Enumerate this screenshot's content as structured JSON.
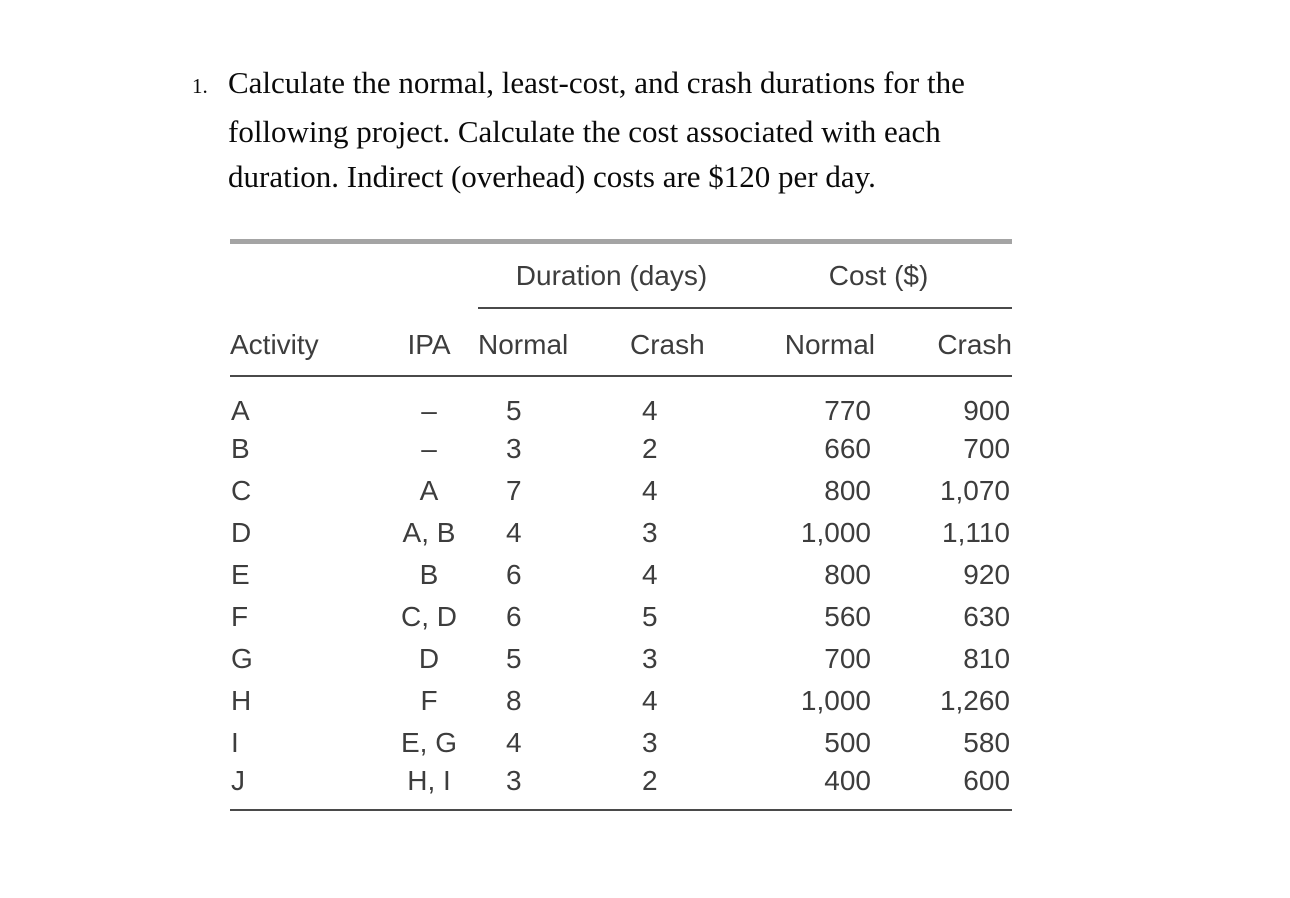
{
  "problem": {
    "number": "1.",
    "lines": [
      "Calculate the normal, least-cost, and crash durations for the",
      "following project. Calculate the cost associated with each",
      "duration. Indirect (overhead) costs are $120 per day."
    ]
  },
  "table": {
    "group_headers": {
      "duration": "Duration (days)",
      "cost": "Cost ($)"
    },
    "columns": [
      "Activity",
      "IPA",
      "Normal",
      "Crash",
      "Normal",
      "Crash"
    ],
    "column_keys": [
      "activity",
      "ipa",
      "duration-normal",
      "duration-crash",
      "cost-normal",
      "cost-crash"
    ],
    "rows": [
      [
        "A",
        "–",
        "5",
        "4",
        "770",
        "900"
      ],
      [
        "B",
        "–",
        "3",
        "2",
        "660",
        "700"
      ],
      [
        "C",
        "A",
        "7",
        "4",
        "800",
        "1,070"
      ],
      [
        "D",
        "A, B",
        "4",
        "3",
        "1,000",
        "1,110"
      ],
      [
        "E",
        "B",
        "6",
        "4",
        "800",
        "920"
      ],
      [
        "F",
        "C, D",
        "6",
        "5",
        "560",
        "630"
      ],
      [
        "G",
        "D",
        "5",
        "3",
        "700",
        "810"
      ],
      [
        "H",
        "F",
        "8",
        "4",
        "1,000",
        "1,260"
      ],
      [
        "I",
        "E, G",
        "4",
        "3",
        "500",
        "580"
      ],
      [
        "J",
        "H, I",
        "3",
        "2",
        "400",
        "600"
      ]
    ]
  },
  "colors": {
    "rule_thick": "#a4a4a4",
    "rule_thin": "#4a4a4a",
    "table_text": "#3d3d3d"
  }
}
